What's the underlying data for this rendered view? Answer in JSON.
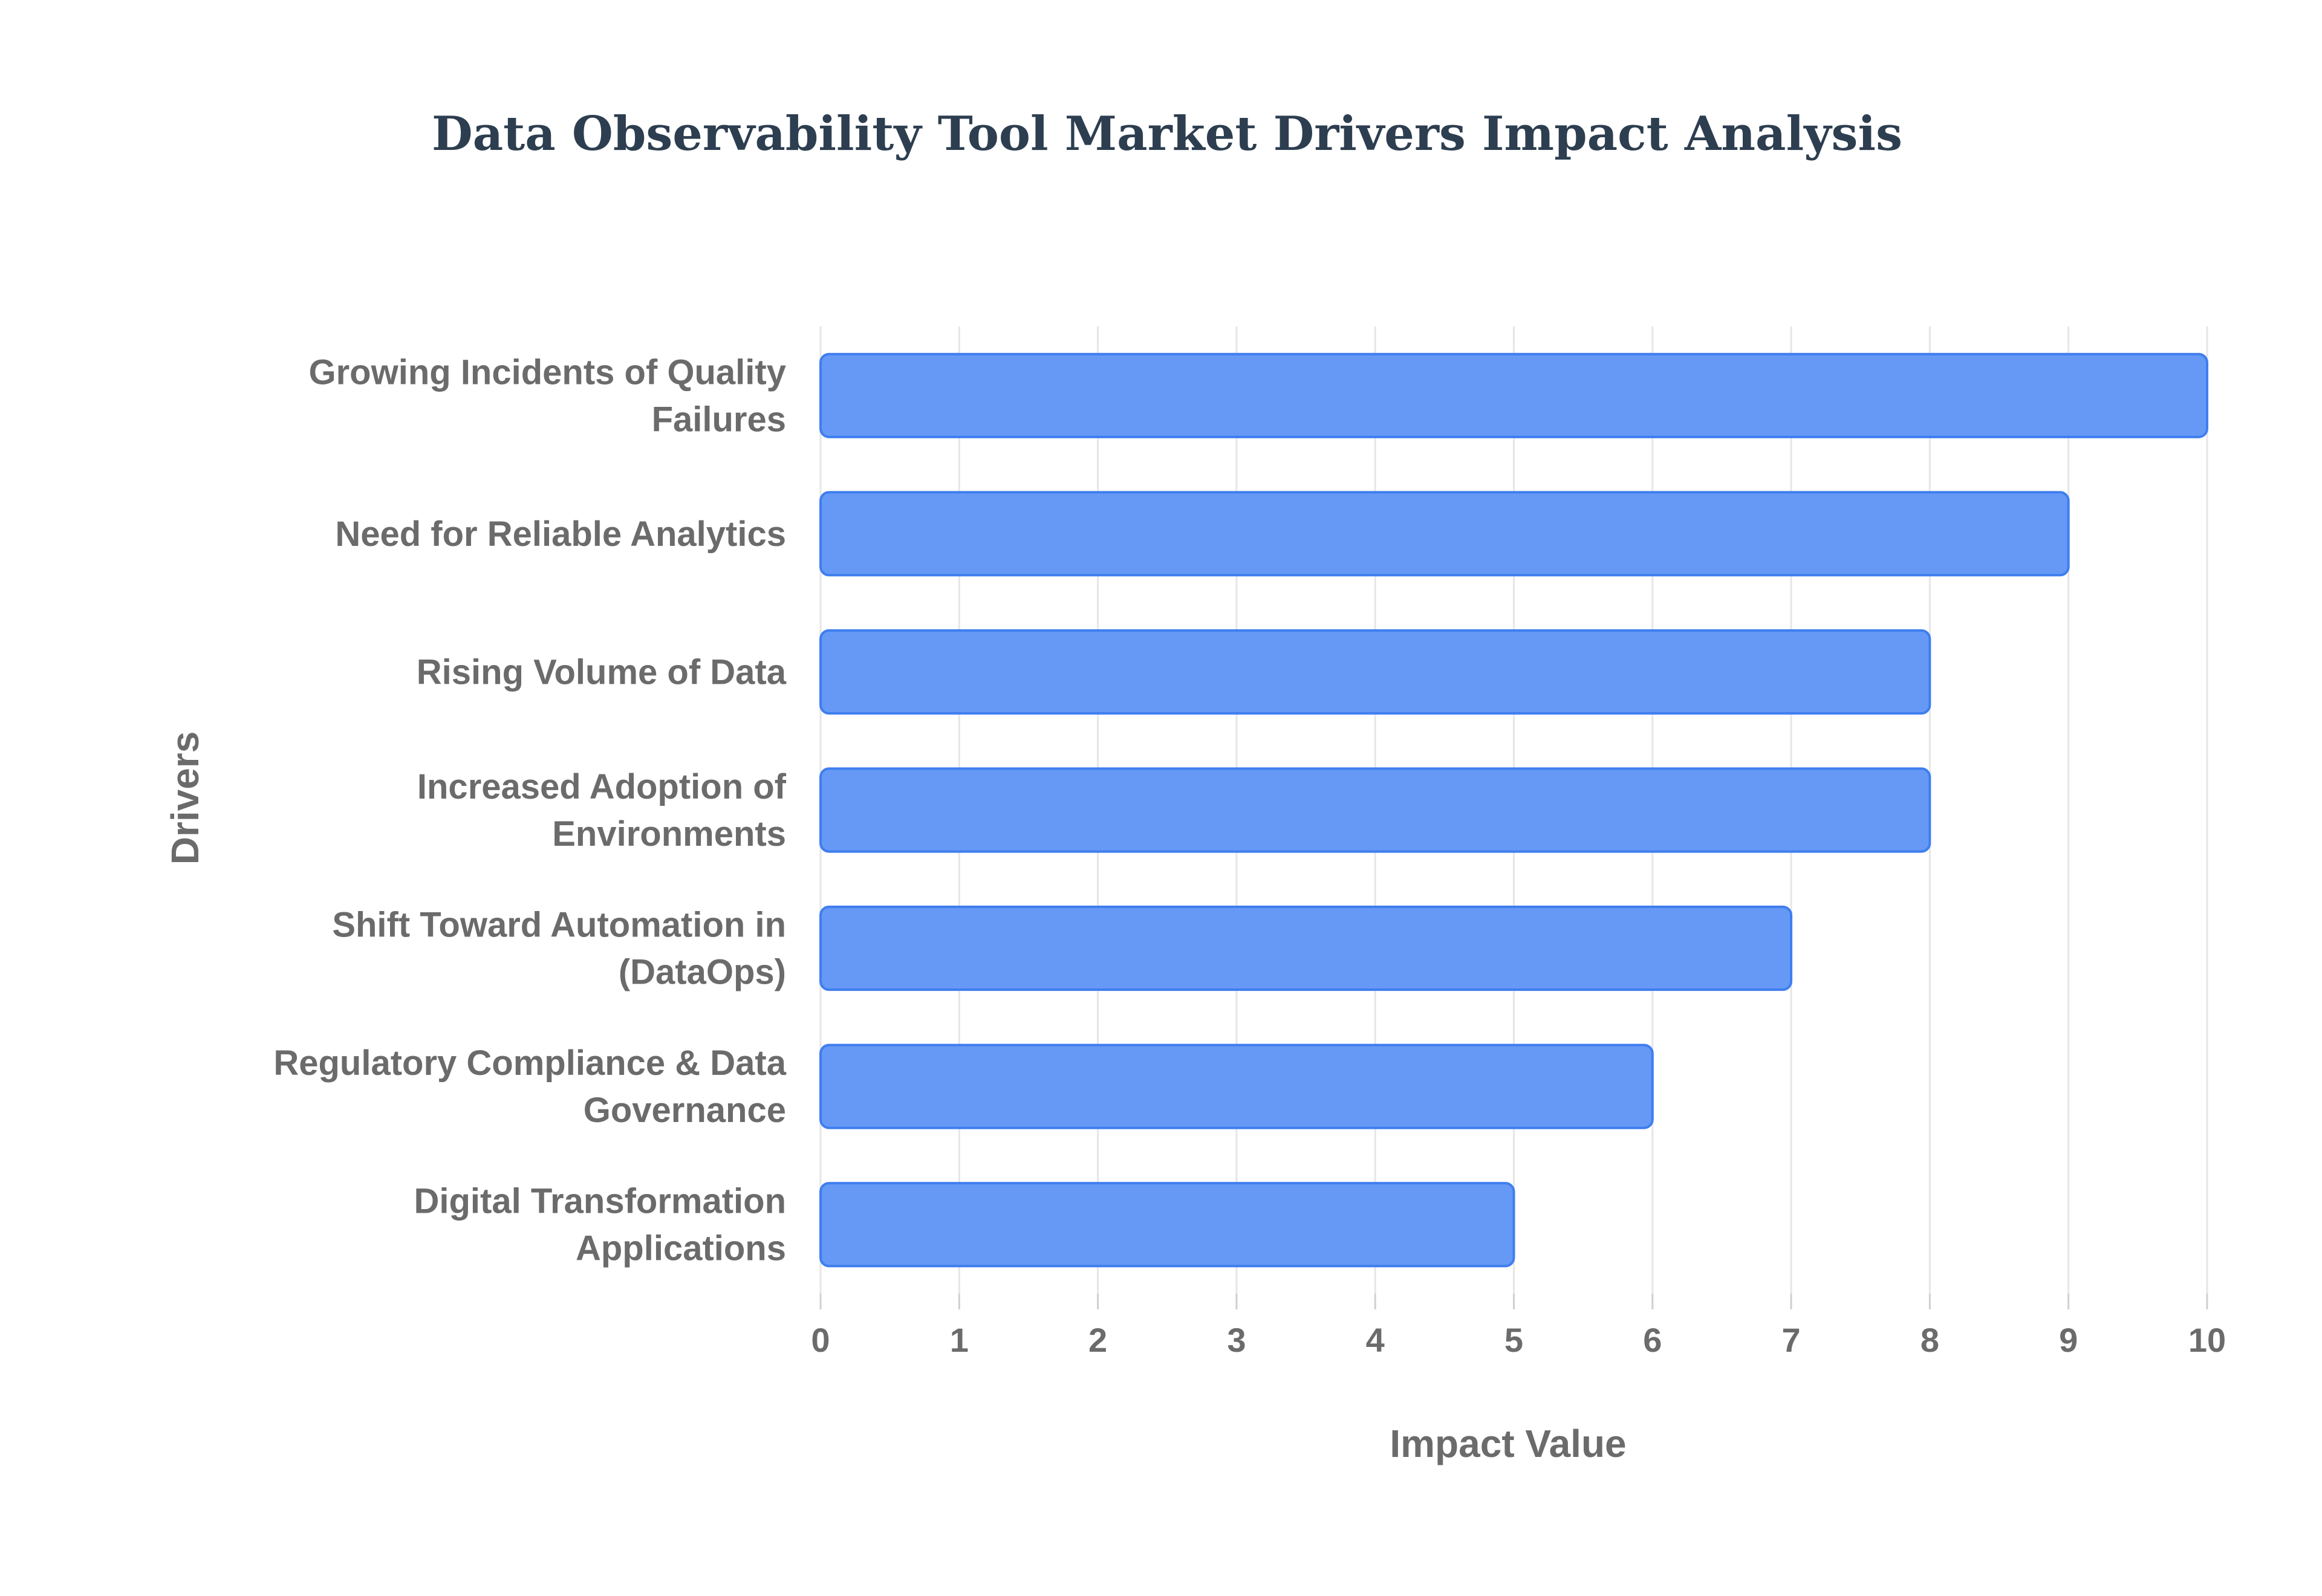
{
  "chart_data": {
    "type": "bar",
    "orientation": "horizontal",
    "title": "Data Observability Tool Market Drivers Impact Analysis",
    "xlabel": "Impact Value",
    "ylabel": "Drivers",
    "xlim": [
      0,
      10
    ],
    "xticks": [
      "0",
      "1",
      "2",
      "3",
      "4",
      "5",
      "6",
      "7",
      "8",
      "9",
      "10"
    ],
    "grid": true,
    "legend": "none",
    "categories": [
      [
        "Growing Incidents of Quality",
        "Failures"
      ],
      [
        "Need for Reliable Analytics"
      ],
      [
        "Rising Volume of Data"
      ],
      [
        "Increased Adoption of",
        "Environments"
      ],
      [
        "Shift Toward Automation in",
        "(DataOps)"
      ],
      [
        "Regulatory Compliance & Data",
        "Governance"
      ],
      [
        "Digital Transformation",
        "Applications"
      ]
    ],
    "values": [
      10,
      9,
      8,
      8,
      7,
      6,
      5
    ],
    "colors": {
      "bar": "#6699f5",
      "bar_edge": "#3f7ef0",
      "grid": "#e6e6e6",
      "title": "#2d3e50",
      "text": "#6b6b6b"
    }
  }
}
